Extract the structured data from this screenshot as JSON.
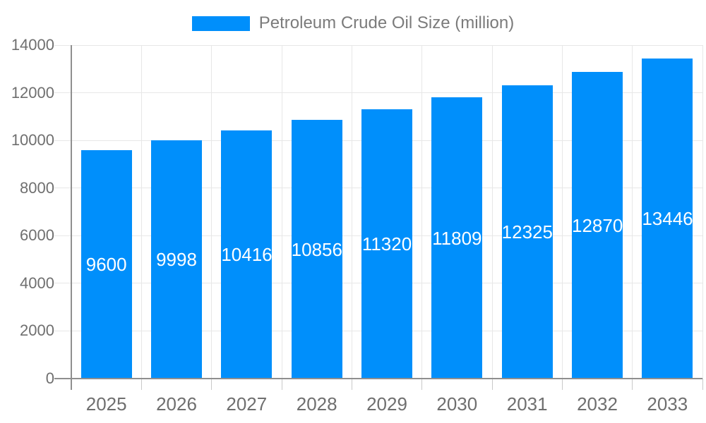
{
  "legend": {
    "label": "Petroleum Crude Oil Size (million)"
  },
  "chart_data": {
    "type": "bar",
    "title": "Petroleum Crude Oil Size (million)",
    "series": [
      {
        "name": "Petroleum Crude Oil Size (million)",
        "values": [
          9600,
          9998,
          10416,
          10856,
          11320,
          11809,
          12325,
          12870,
          13446
        ]
      }
    ],
    "categories": [
      "2025",
      "2026",
      "2027",
      "2028",
      "2029",
      "2030",
      "2031",
      "2032",
      "2033"
    ],
    "values": [
      9600,
      9998,
      10416,
      10856,
      11320,
      11809,
      12325,
      12870,
      13446
    ],
    "bar_value_labels": [
      "9600",
      "9998",
      "10416",
      "10856",
      "11320",
      "11809",
      "12325",
      "12870",
      "13446"
    ],
    "xlabel": "",
    "ylabel": "",
    "ylim": [
      0,
      14000
    ],
    "yticks": [
      0,
      2000,
      4000,
      6000,
      8000,
      10000,
      12000,
      14000
    ],
    "grid": true,
    "legend_position": "top",
    "colors": {
      "bar": "#008FFB",
      "bar_label_text": "#FFFFFF",
      "axis_text": "#6F6F6F",
      "legend_text": "#7B7B7B",
      "gridline": "#E7E7E7",
      "axis_line": "#8F8F8F"
    }
  }
}
